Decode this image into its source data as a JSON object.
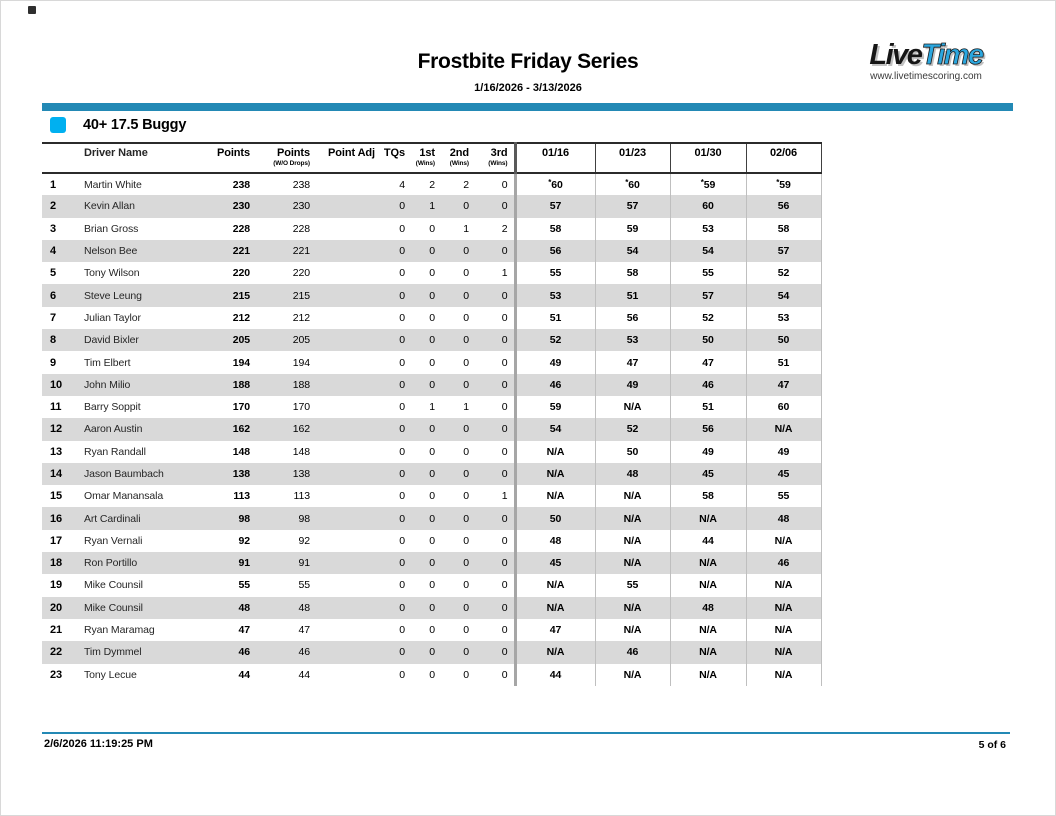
{
  "header": {
    "title": "Frostbite Friday Series",
    "date_range": "1/16/2026 - 3/13/2026",
    "logo": {
      "brand_live": "Live",
      "brand_time": "Time",
      "website": "www.livetimescoring.com"
    }
  },
  "colors": {
    "accent_bar": "#2389B5",
    "class_swatch": "#00B0F0",
    "row_stripe": "#D9D9D9",
    "logo_blue": "#2BA7DF"
  },
  "class_section": {
    "name": "40+ 17.5 Buggy",
    "table": {
      "columns": [
        {
          "key": "rank",
          "label": ""
        },
        {
          "key": "driver",
          "label": "Driver Name"
        },
        {
          "key": "points",
          "label": "Points"
        },
        {
          "key": "points_wo",
          "label": "Points",
          "sublabel": "(W/O Drops)"
        },
        {
          "key": "point_adj",
          "label": "Point Adj"
        },
        {
          "key": "tqs",
          "label": "TQs"
        },
        {
          "key": "first",
          "label": "1st",
          "sublabel": "(Wins)"
        },
        {
          "key": "second",
          "label": "2nd",
          "sublabel": "(Wins)"
        },
        {
          "key": "third",
          "label": "3rd",
          "sublabel": "(Wins)"
        },
        {
          "key": "r1",
          "label": "01/16"
        },
        {
          "key": "r2",
          "label": "01/23"
        },
        {
          "key": "r3",
          "label": "01/30"
        },
        {
          "key": "r4",
          "label": "02/06"
        }
      ],
      "rows": [
        {
          "rank": "1",
          "driver": "Martin White",
          "points": "238",
          "points_wo": "238",
          "point_adj": "",
          "tqs": "4",
          "first": "2",
          "second": "2",
          "third": "0",
          "r1": "*60",
          "r2": "*60",
          "r3": "*59",
          "r4": "*59"
        },
        {
          "rank": "2",
          "driver": "Kevin Allan",
          "points": "230",
          "points_wo": "230",
          "point_adj": "",
          "tqs": "0",
          "first": "1",
          "second": "0",
          "third": "0",
          "r1": "57",
          "r2": "57",
          "r3": "60",
          "r4": "56"
        },
        {
          "rank": "3",
          "driver": "Brian Gross",
          "points": "228",
          "points_wo": "228",
          "point_adj": "",
          "tqs": "0",
          "first": "0",
          "second": "1",
          "third": "2",
          "r1": "58",
          "r2": "59",
          "r3": "53",
          "r4": "58"
        },
        {
          "rank": "4",
          "driver": "Nelson Bee",
          "points": "221",
          "points_wo": "221",
          "point_adj": "",
          "tqs": "0",
          "first": "0",
          "second": "0",
          "third": "0",
          "r1": "56",
          "r2": "54",
          "r3": "54",
          "r4": "57"
        },
        {
          "rank": "5",
          "driver": "Tony Wilson",
          "points": "220",
          "points_wo": "220",
          "point_adj": "",
          "tqs": "0",
          "first": "0",
          "second": "0",
          "third": "1",
          "r1": "55",
          "r2": "58",
          "r3": "55",
          "r4": "52"
        },
        {
          "rank": "6",
          "driver": "Steve Leung",
          "points": "215",
          "points_wo": "215",
          "point_adj": "",
          "tqs": "0",
          "first": "0",
          "second": "0",
          "third": "0",
          "r1": "53",
          "r2": "51",
          "r3": "57",
          "r4": "54"
        },
        {
          "rank": "7",
          "driver": "Julian Taylor",
          "points": "212",
          "points_wo": "212",
          "point_adj": "",
          "tqs": "0",
          "first": "0",
          "second": "0",
          "third": "0",
          "r1": "51",
          "r2": "56",
          "r3": "52",
          "r4": "53"
        },
        {
          "rank": "8",
          "driver": "David Bixler",
          "points": "205",
          "points_wo": "205",
          "point_adj": "",
          "tqs": "0",
          "first": "0",
          "second": "0",
          "third": "0",
          "r1": "52",
          "r2": "53",
          "r3": "50",
          "r4": "50"
        },
        {
          "rank": "9",
          "driver": "Tim Elbert",
          "points": "194",
          "points_wo": "194",
          "point_adj": "",
          "tqs": "0",
          "first": "0",
          "second": "0",
          "third": "0",
          "r1": "49",
          "r2": "47",
          "r3": "47",
          "r4": "51"
        },
        {
          "rank": "10",
          "driver": "John Milio",
          "points": "188",
          "points_wo": "188",
          "point_adj": "",
          "tqs": "0",
          "first": "0",
          "second": "0",
          "third": "0",
          "r1": "46",
          "r2": "49",
          "r3": "46",
          "r4": "47"
        },
        {
          "rank": "11",
          "driver": "Barry Soppit",
          "points": "170",
          "points_wo": "170",
          "point_adj": "",
          "tqs": "0",
          "first": "1",
          "second": "1",
          "third": "0",
          "r1": "59",
          "r2": "N/A",
          "r3": "51",
          "r4": "60"
        },
        {
          "rank": "12",
          "driver": "Aaron Austin",
          "points": "162",
          "points_wo": "162",
          "point_adj": "",
          "tqs": "0",
          "first": "0",
          "second": "0",
          "third": "0",
          "r1": "54",
          "r2": "52",
          "r3": "56",
          "r4": "N/A"
        },
        {
          "rank": "13",
          "driver": "Ryan Randall",
          "points": "148",
          "points_wo": "148",
          "point_adj": "",
          "tqs": "0",
          "first": "0",
          "second": "0",
          "third": "0",
          "r1": "N/A",
          "r2": "50",
          "r3": "49",
          "r4": "49"
        },
        {
          "rank": "14",
          "driver": "Jason Baumbach",
          "points": "138",
          "points_wo": "138",
          "point_adj": "",
          "tqs": "0",
          "first": "0",
          "second": "0",
          "third": "0",
          "r1": "N/A",
          "r2": "48",
          "r3": "45",
          "r4": "45"
        },
        {
          "rank": "15",
          "driver": "Omar Manansala",
          "points": "113",
          "points_wo": "113",
          "point_adj": "",
          "tqs": "0",
          "first": "0",
          "second": "0",
          "third": "1",
          "r1": "N/A",
          "r2": "N/A",
          "r3": "58",
          "r4": "55"
        },
        {
          "rank": "16",
          "driver": "Art Cardinali",
          "points": "98",
          "points_wo": "98",
          "point_adj": "",
          "tqs": "0",
          "first": "0",
          "second": "0",
          "third": "0",
          "r1": "50",
          "r2": "N/A",
          "r3": "N/A",
          "r4": "48"
        },
        {
          "rank": "17",
          "driver": "Ryan Vernali",
          "points": "92",
          "points_wo": "92",
          "point_adj": "",
          "tqs": "0",
          "first": "0",
          "second": "0",
          "third": "0",
          "r1": "48",
          "r2": "N/A",
          "r3": "44",
          "r4": "N/A"
        },
        {
          "rank": "18",
          "driver": "Ron Portillo",
          "points": "91",
          "points_wo": "91",
          "point_adj": "",
          "tqs": "0",
          "first": "0",
          "second": "0",
          "third": "0",
          "r1": "45",
          "r2": "N/A",
          "r3": "N/A",
          "r4": "46"
        },
        {
          "rank": "19",
          "driver": "Mike Counsil",
          "points": "55",
          "points_wo": "55",
          "point_adj": "",
          "tqs": "0",
          "first": "0",
          "second": "0",
          "third": "0",
          "r1": "N/A",
          "r2": "55",
          "r3": "N/A",
          "r4": "N/A"
        },
        {
          "rank": "20",
          "driver": "Mike Counsil",
          "points": "48",
          "points_wo": "48",
          "point_adj": "",
          "tqs": "0",
          "first": "0",
          "second": "0",
          "third": "0",
          "r1": "N/A",
          "r2": "N/A",
          "r3": "48",
          "r4": "N/A"
        },
        {
          "rank": "21",
          "driver": "Ryan Maramag",
          "points": "47",
          "points_wo": "47",
          "point_adj": "",
          "tqs": "0",
          "first": "0",
          "second": "0",
          "third": "0",
          "r1": "47",
          "r2": "N/A",
          "r3": "N/A",
          "r4": "N/A"
        },
        {
          "rank": "22",
          "driver": "Tim Dymmel",
          "points": "46",
          "points_wo": "46",
          "point_adj": "",
          "tqs": "0",
          "first": "0",
          "second": "0",
          "third": "0",
          "r1": "N/A",
          "r2": "46",
          "r3": "N/A",
          "r4": "N/A"
        },
        {
          "rank": "23",
          "driver": "Tony Lecue",
          "points": "44",
          "points_wo": "44",
          "point_adj": "",
          "tqs": "0",
          "first": "0",
          "second": "0",
          "third": "0",
          "r1": "44",
          "r2": "N/A",
          "r3": "N/A",
          "r4": "N/A"
        }
      ]
    }
  },
  "footer": {
    "timestamp": "2/6/2026 11:19:25 PM",
    "page": "5 of 6"
  }
}
